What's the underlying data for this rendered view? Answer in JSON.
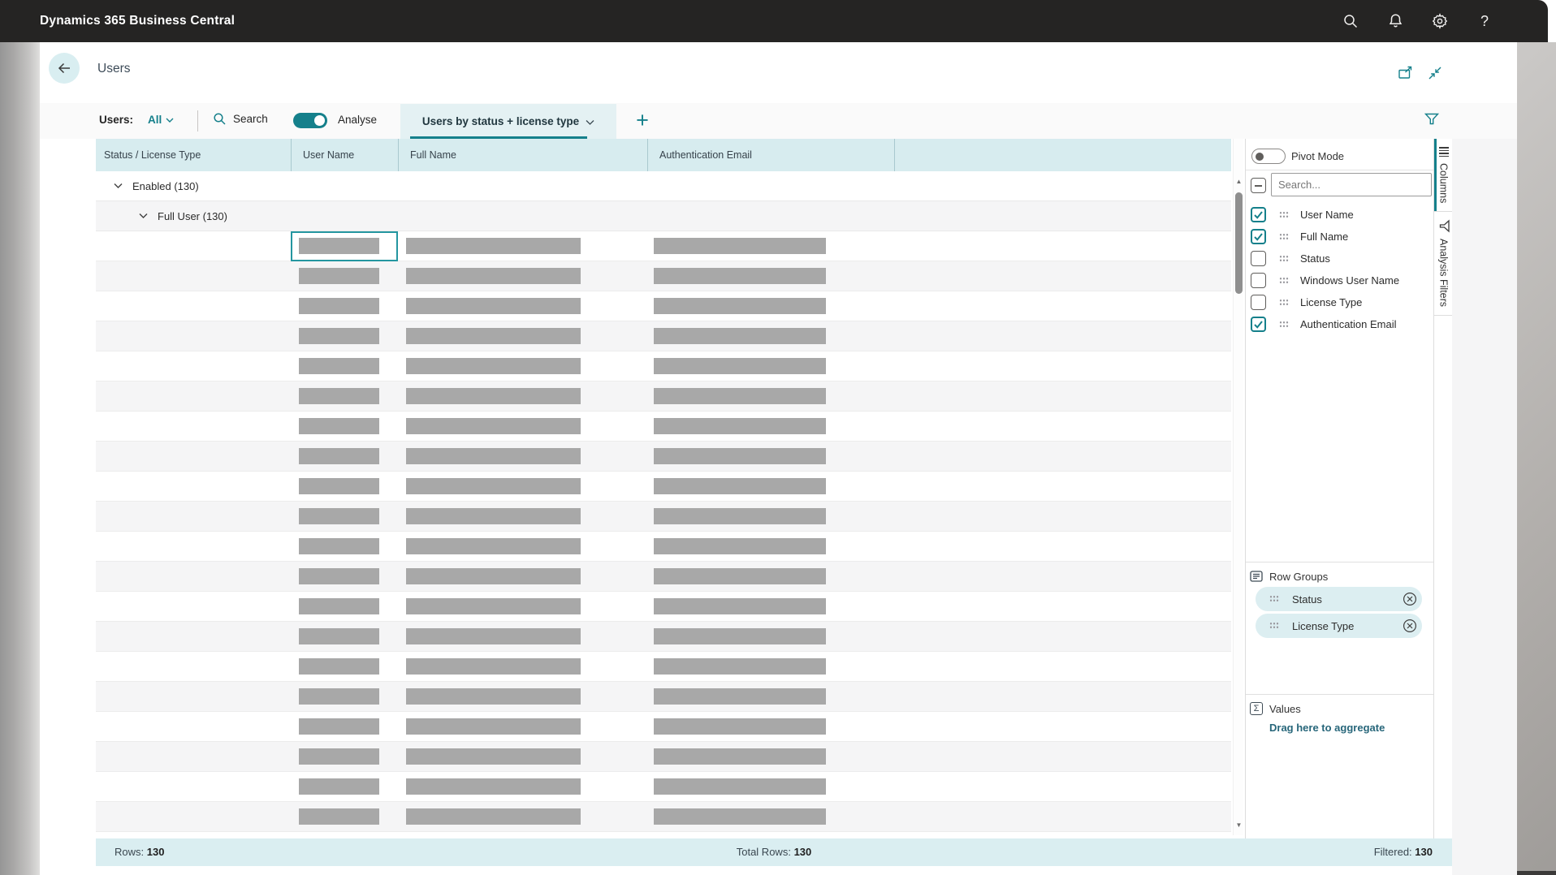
{
  "app": {
    "title": "Dynamics 365 Business Central"
  },
  "page": {
    "title": "Users"
  },
  "toolbar": {
    "caption": "Users:",
    "filter_value": "All",
    "search_label": "Search",
    "analyse_label": "Analyse",
    "tab_label": "Users by status + license type",
    "add_label": "+"
  },
  "table": {
    "columns": [
      {
        "label": "Status / License Type"
      },
      {
        "label": "User Name"
      },
      {
        "label": "Full Name"
      },
      {
        "label": "Authentication Email"
      },
      {
        "label": ""
      }
    ],
    "groups": [
      {
        "label": "Enabled (130)"
      },
      {
        "label": "Full User (130)"
      }
    ],
    "placeholder_rows": 20,
    "selected_row_index": 0
  },
  "panel": {
    "pivot_label": "Pivot Mode",
    "search_placeholder": "Search...",
    "fields": [
      {
        "label": "User Name",
        "checked": true
      },
      {
        "label": "Full Name",
        "checked": true
      },
      {
        "label": "Status",
        "checked": false
      },
      {
        "label": "Windows User Name",
        "checked": false
      },
      {
        "label": "License Type",
        "checked": false
      },
      {
        "label": "Authentication Email",
        "checked": true
      }
    ],
    "row_groups": {
      "title": "Row Groups",
      "items": [
        "Status",
        "License Type"
      ]
    },
    "values": {
      "title": "Values",
      "hint": "Drag here to aggregate"
    }
  },
  "side_tabs": [
    {
      "label": "Columns",
      "active": true
    },
    {
      "label": "Analysis Filters",
      "active": false
    }
  ],
  "footer": {
    "rows_label": "Rows:",
    "rows_value": "130",
    "total_label": "Total Rows:",
    "total_value": "130",
    "filtered_label": "Filtered:",
    "filtered_value": "130"
  },
  "colors": {
    "accent": "#15808b",
    "accent_light": "#d9eef1",
    "topbar_bg": "#252423",
    "header_bg": "#d7ecef",
    "tab_bg": "#e4f1f3",
    "footer_bg": "#daeef1",
    "chip_bg": "#dceef1",
    "stripe_bg": "#f5f5f6",
    "bar_color": "#a8a8a8",
    "drag_hint": "#27667a"
  }
}
